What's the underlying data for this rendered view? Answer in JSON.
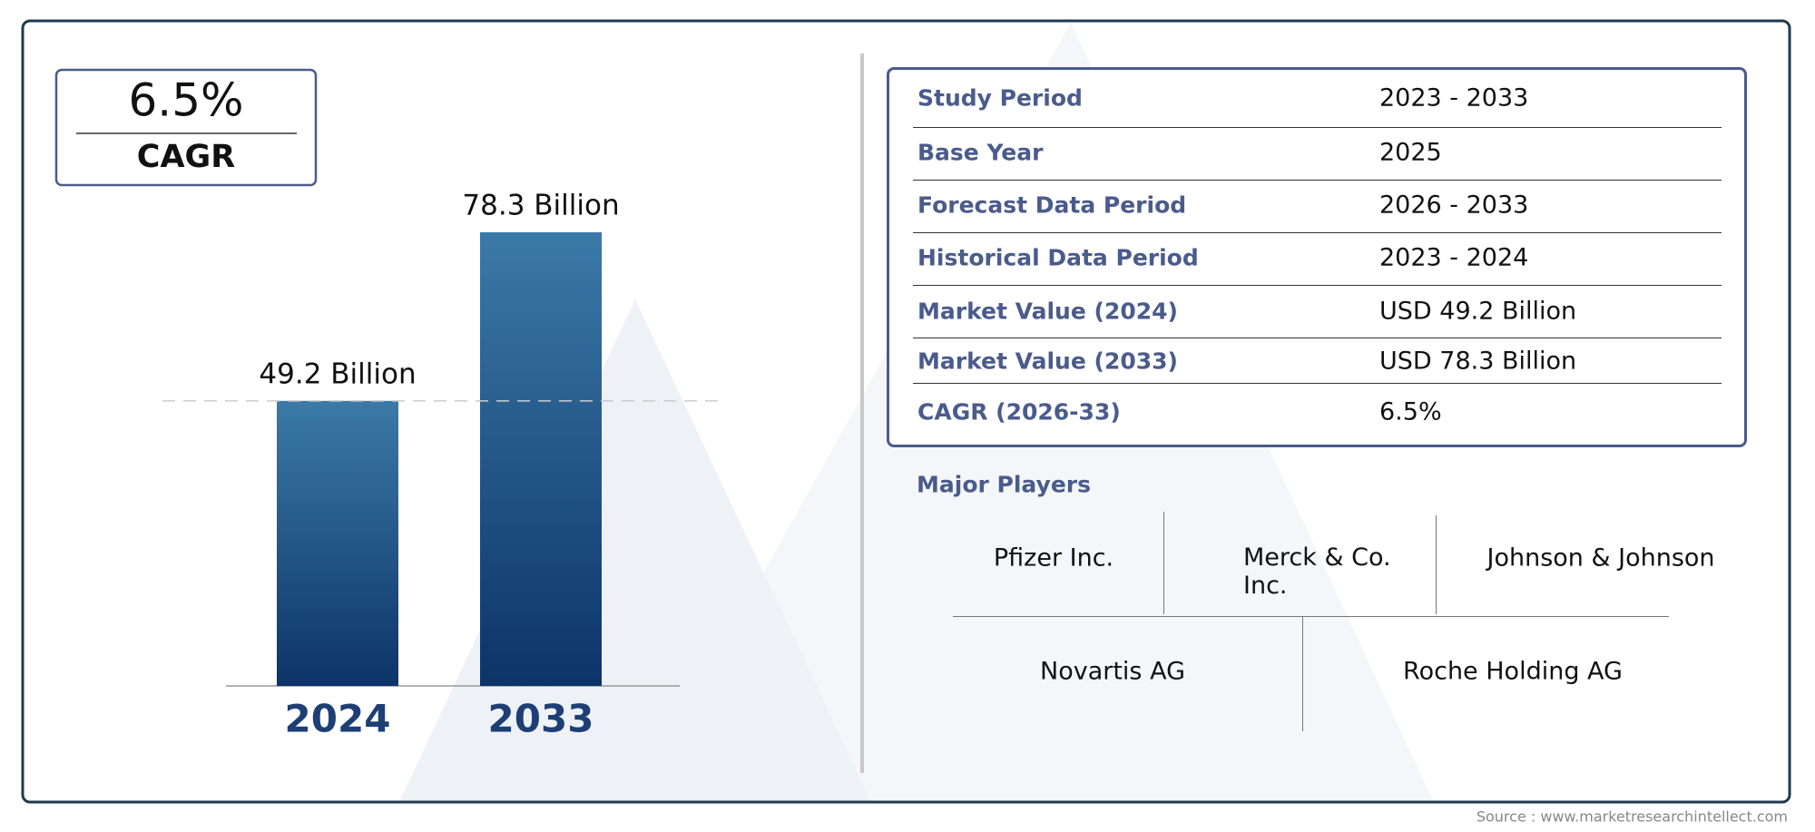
{
  "chart_data": {
    "type": "bar",
    "categories": [
      "2024",
      "2033"
    ],
    "values": [
      49.2,
      78.3
    ],
    "value_labels": [
      "49.2 Billion",
      "78.3 Billion"
    ],
    "color": "#0c3468"
  },
  "cagr_box": {
    "value": "6.5%",
    "label": "CAGR"
  },
  "table": {
    "rows": [
      [
        "Study Period",
        "2023 - 2033"
      ],
      [
        "Base Year",
        "2025"
      ],
      [
        "Forecast Data Period",
        "2026 - 2033"
      ],
      [
        "Historical Data Period",
        "2023 - 2024"
      ],
      [
        "Market Value (2024)",
        "USD 49.2 Billion"
      ],
      [
        "Market Value (2033)",
        "USD 78.3 Billion"
      ],
      [
        "CAGR (2026-33)",
        "6.5%"
      ]
    ]
  },
  "major_players": {
    "title": "Major Players",
    "players": [
      "Pfizer Inc.",
      "Merck & Co. Inc.",
      "Johnson & Johnson",
      "Novartis AG",
      "Roche Holding AG"
    ]
  },
  "source": "Source : www.marketresearchintellect.com"
}
